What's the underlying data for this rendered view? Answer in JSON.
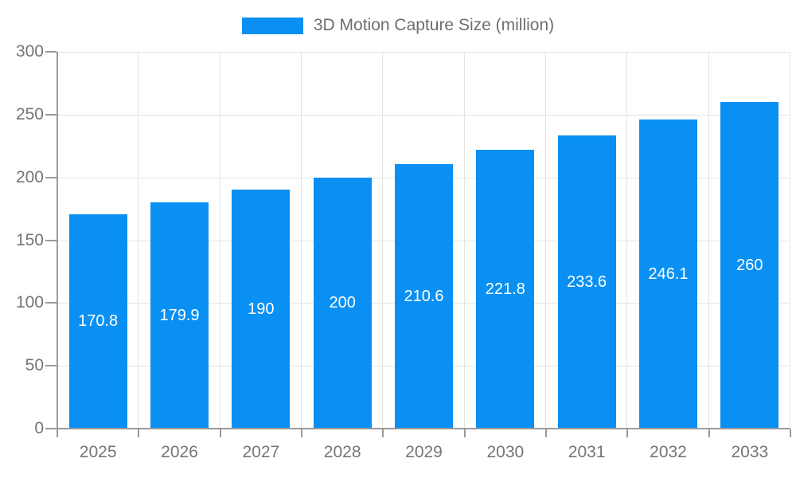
{
  "legend": {
    "label": "3D Motion Capture Size (million)"
  },
  "chart_data": {
    "type": "bar",
    "title": "3D Motion Capture Size (million)",
    "categories": [
      "2025",
      "2026",
      "2027",
      "2028",
      "2029",
      "2030",
      "2031",
      "2032",
      "2033"
    ],
    "values": [
      170.8,
      179.9,
      190,
      200,
      210.6,
      221.8,
      233.6,
      246.1,
      260
    ],
    "value_labels": [
      "170.8",
      "179.9",
      "190",
      "200",
      "210.6",
      "221.8",
      "233.6",
      "246.1",
      "260"
    ],
    "xlabel": "",
    "ylabel": "",
    "ylim": [
      0,
      300
    ],
    "ytick_step": 50,
    "ytick_labels": [
      "0",
      "50",
      "100",
      "150",
      "200",
      "250",
      "300"
    ],
    "grid": "horizontal-and-vertical",
    "legend_position": "top-center",
    "value_label_position": "center-of-bar",
    "colors": {
      "bar": "#0990f2",
      "value_label": "#ffffff",
      "axis_line": "#9a9a9a",
      "tick_mark": "#9a9a9a",
      "grid_line": "#e3e3e3",
      "axis_tick_label": "#757575",
      "legend_text": "#6e6e6e",
      "background": "#ffffff"
    }
  }
}
